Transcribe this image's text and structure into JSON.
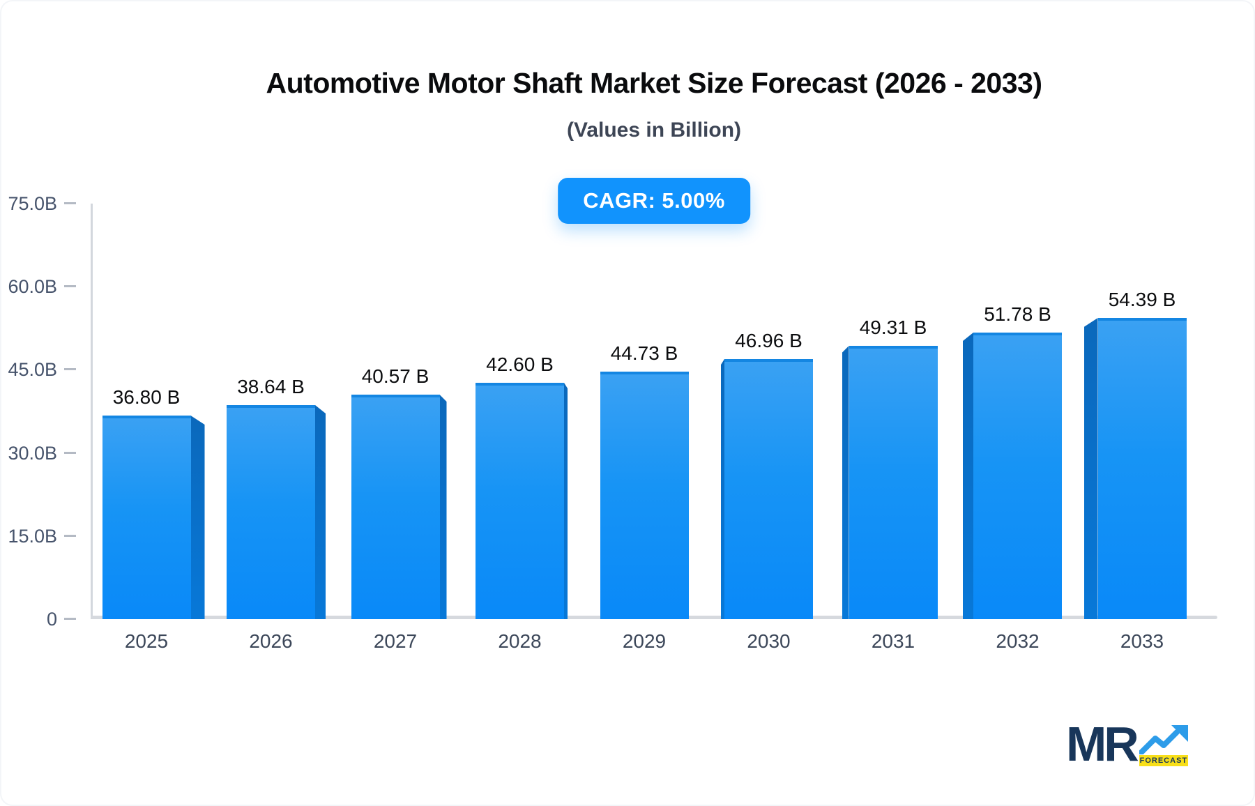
{
  "header": {
    "title": "Automotive Motor Shaft Market Size Forecast (2026 - 2033)",
    "subtitle": "(Values in Billion)",
    "cagr_label": "CAGR: 5.00%"
  },
  "chart_data": {
    "type": "bar",
    "title": "Automotive Motor Shaft Market Size Forecast (2026 - 2033)",
    "subtitle": "(Values in Billion)",
    "cagr": "5.00%",
    "categories": [
      "2025",
      "2026",
      "2027",
      "2028",
      "2029",
      "2030",
      "2031",
      "2032",
      "2033"
    ],
    "values": [
      36.8,
      38.64,
      40.57,
      42.6,
      44.73,
      46.96,
      49.31,
      51.78,
      54.39
    ],
    "value_labels": [
      "36.80 B",
      "38.64 B",
      "40.57 B",
      "42.60 B",
      "44.73 B",
      "46.96 B",
      "49.31 B",
      "51.78 B",
      "54.39 B"
    ],
    "ylim": [
      0,
      75
    ],
    "yticks": [
      0,
      15,
      30,
      45,
      60,
      75
    ],
    "ytick_labels": [
      "0",
      "15.0B",
      "30.0B",
      "45.0B",
      "60.0B",
      "75.0B"
    ],
    "xlabel": "",
    "ylabel": "",
    "grid": false,
    "legend": false,
    "colors": {
      "bar_face_top": "#3aa1f3",
      "bar_face_bottom": "#0989f8",
      "bar_side": "#0a6ec5",
      "badge_background": "#1193fd",
      "axis_line": "#d3d7dd",
      "tick_text": "#46536b"
    }
  },
  "logo": {
    "text": "MR",
    "tag": "FORECAST",
    "arrow_icon": "trend-up-arrow"
  }
}
